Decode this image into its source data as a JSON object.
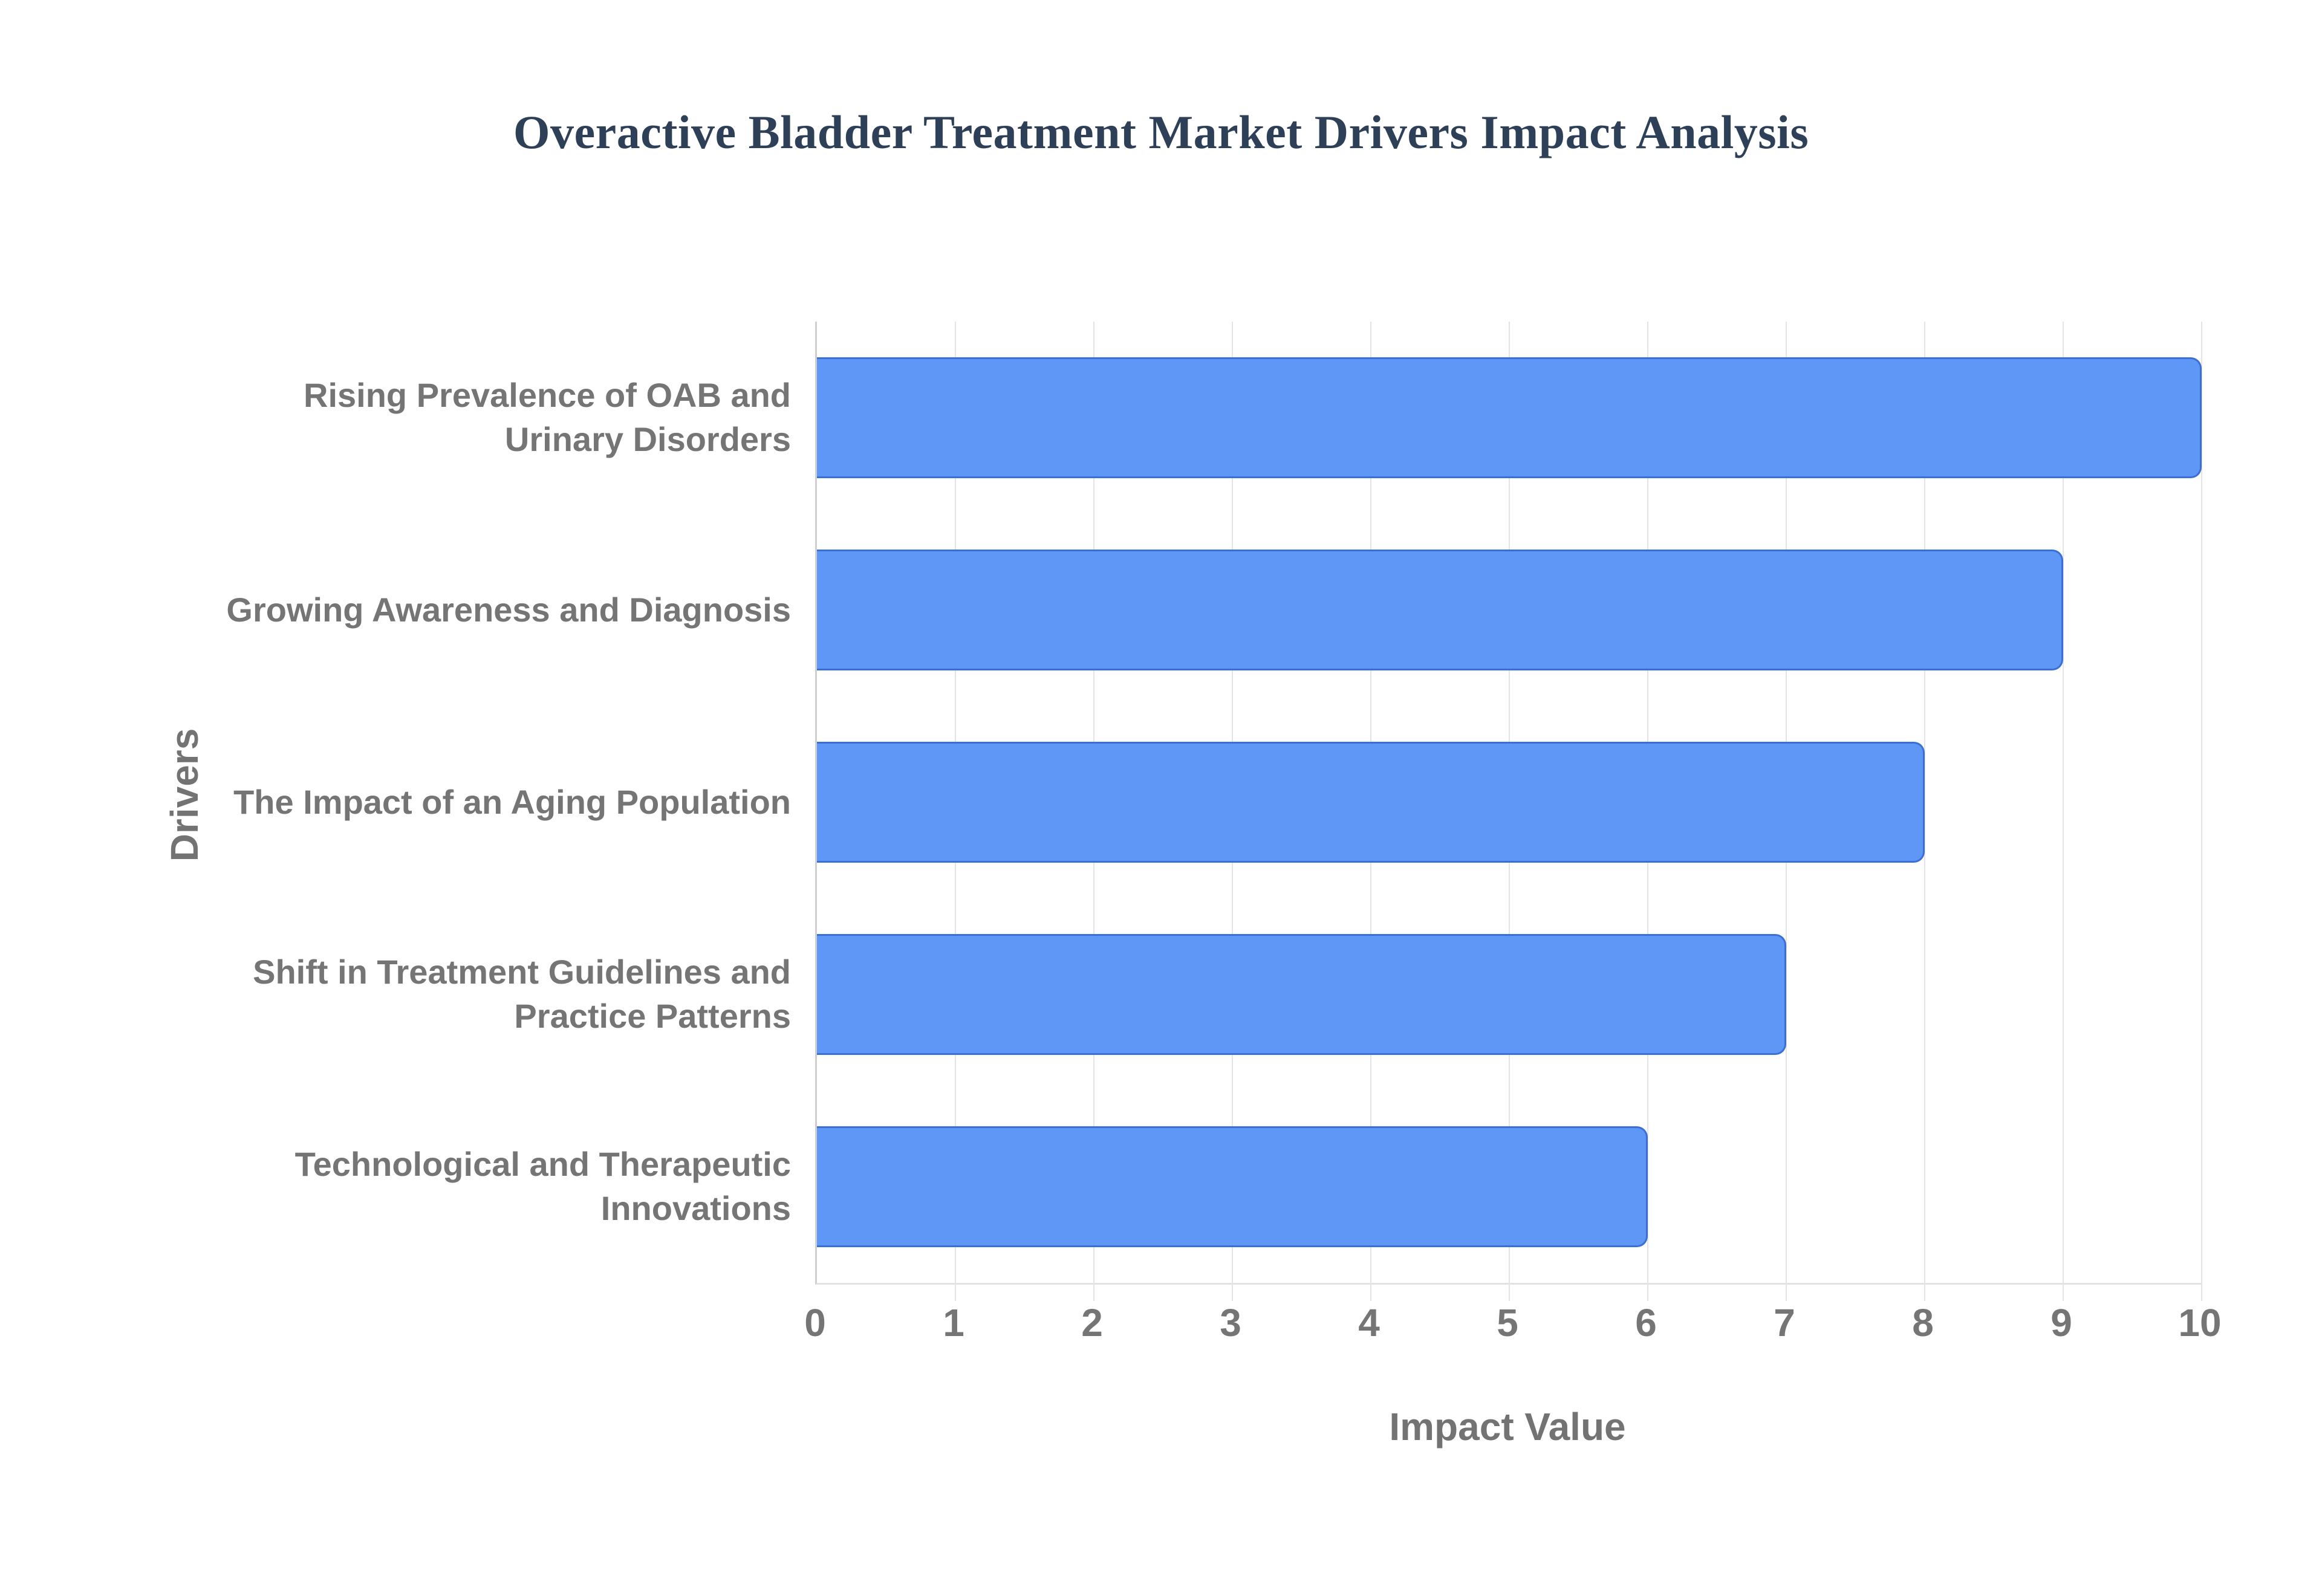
{
  "page": {
    "background_color": "#ffffff"
  },
  "chart_data": {
    "type": "bar",
    "orientation": "horizontal",
    "title": "Overactive Bladder Treatment Market Drivers Impact Analysis",
    "xlabel": "Impact Value",
    "ylabel": "Drivers",
    "categories": [
      "Rising Prevalence of OAB and Urinary Disorders",
      "Growing Awareness and Diagnosis",
      "The Impact of an Aging Population",
      "Shift in Treatment Guidelines and Practice Patterns",
      "Technological and Therapeutic Innovations"
    ],
    "values": [
      10,
      9,
      8,
      7,
      6
    ],
    "xlim": [
      0,
      10
    ],
    "x_ticks": [
      "0",
      "1",
      "2",
      "3",
      "4",
      "5",
      "6",
      "7",
      "8",
      "9",
      "10"
    ],
    "grid": "vertical-gridlines-on",
    "legend": "none",
    "data_labels": "none",
    "colors": {
      "bar_fill": "#5e97f5",
      "bar_border": "#3a6fd8",
      "title_text": "#2e4057",
      "axis_text": "#757575",
      "axis_title_text": "#737373",
      "gridline": "#e4e4e4",
      "axis_line": "#cfcfcf"
    }
  }
}
